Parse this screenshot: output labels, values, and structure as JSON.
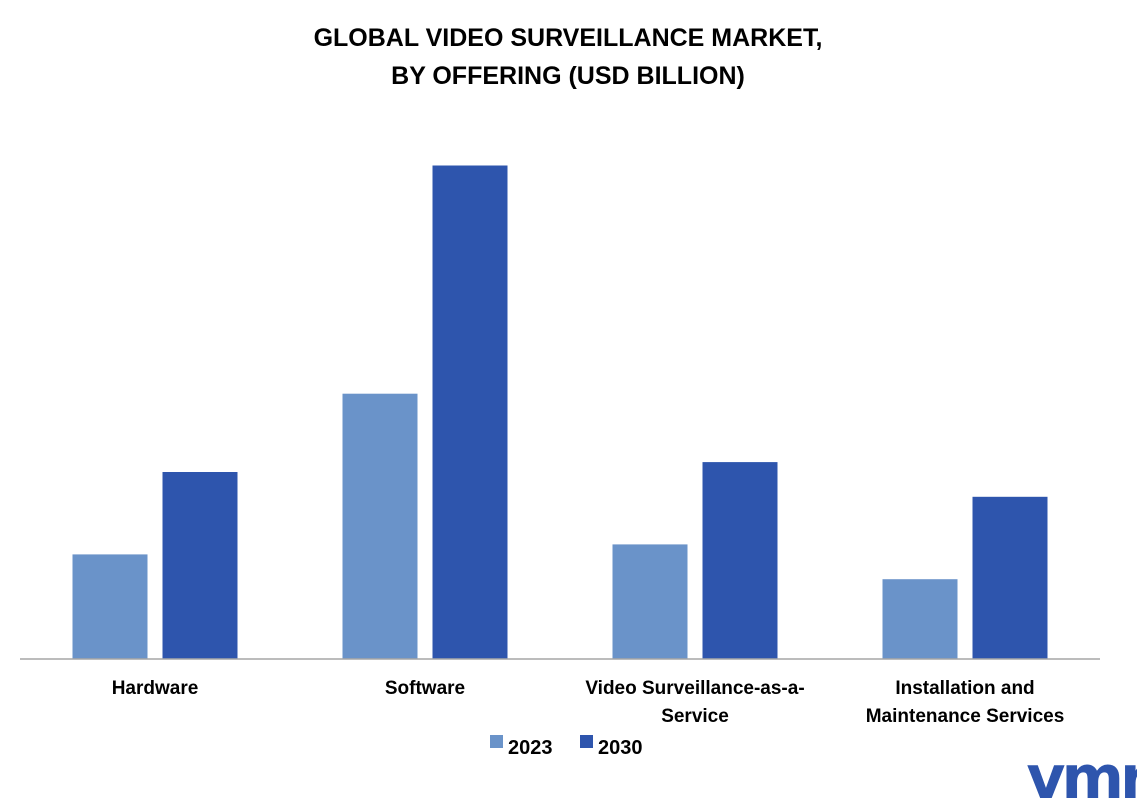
{
  "chart_data": {
    "type": "bar",
    "title_lines": [
      "GLOBAL VIDEO SURVEILLANCE MARKET,",
      "BY OFFERING (USD BILLION)"
    ],
    "categories": [
      "Hardware",
      "Software",
      "Video Surveillance-as-a-Service",
      "Installation and Maintenance Services"
    ],
    "category_label_lines": [
      [
        "Hardware"
      ],
      [
        "Software"
      ],
      [
        "Video Surveillance-as-a-",
        "Service"
      ],
      [
        "Installation and",
        "Maintenance Services"
      ]
    ],
    "series": [
      {
        "name": "2023",
        "color": "#6a93c9",
        "values": [
          10.6,
          26.8,
          11.6,
          8.1
        ]
      },
      {
        "name": "2030",
        "color": "#2e55ad",
        "values": [
          18.9,
          49.8,
          19.9,
          16.4
        ]
      }
    ],
    "ylim": [
      0,
      55
    ],
    "grid": false,
    "legend_position": "bottom",
    "logo_text": "vmr"
  }
}
